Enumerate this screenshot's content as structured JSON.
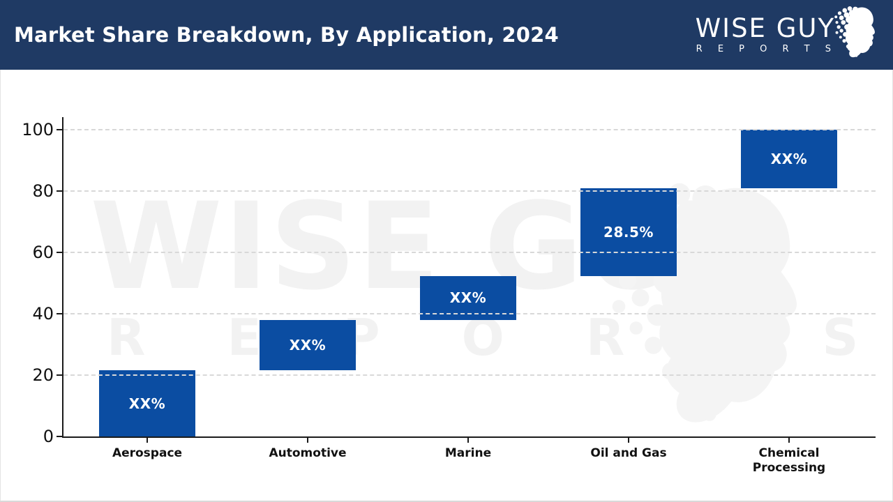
{
  "header": {
    "title": "Market Share Breakdown, By Application, 2024",
    "logo": {
      "line1": "WISE GUY",
      "line2": "R E P O R T S"
    }
  },
  "watermark": {
    "line1": "WISE GUY",
    "line2": "R E P O R T S"
  },
  "colors": {
    "header_bg": "#1F3A64",
    "bar": "#0B4DA2",
    "bar_label_text": "#FFFFFF",
    "gridline": "#D8D8D8",
    "axis": "#1A1A1A",
    "watermark": "#F2F2F2"
  },
  "chart_data": {
    "type": "bar",
    "subtype": "floating-waterfall",
    "title": "Market Share Breakdown, By Application, 2024",
    "xlabel": "",
    "ylabel": "",
    "ylim": [
      0,
      100
    ],
    "yticks": [
      0,
      20,
      40,
      60,
      80,
      100
    ],
    "grid": "dashed-horizontal",
    "legend": "none",
    "categories": [
      "Aerospace",
      "Automotive",
      "Marine",
      "Oil and Gas",
      "Chemical Processing"
    ],
    "segments": [
      {
        "category": "Aerospace",
        "start": 0,
        "end": 21.5,
        "label": "XX%"
      },
      {
        "category": "Automotive",
        "start": 21.5,
        "end": 38,
        "label": "XX%"
      },
      {
        "category": "Marine",
        "start": 38,
        "end": 52.3,
        "label": "XX%"
      },
      {
        "category": "Oil and Gas",
        "start": 52.3,
        "end": 80.8,
        "label": "28.5%"
      },
      {
        "category": "Chemical Processing",
        "start": 80.8,
        "end": 100,
        "label": "XX%"
      }
    ]
  }
}
